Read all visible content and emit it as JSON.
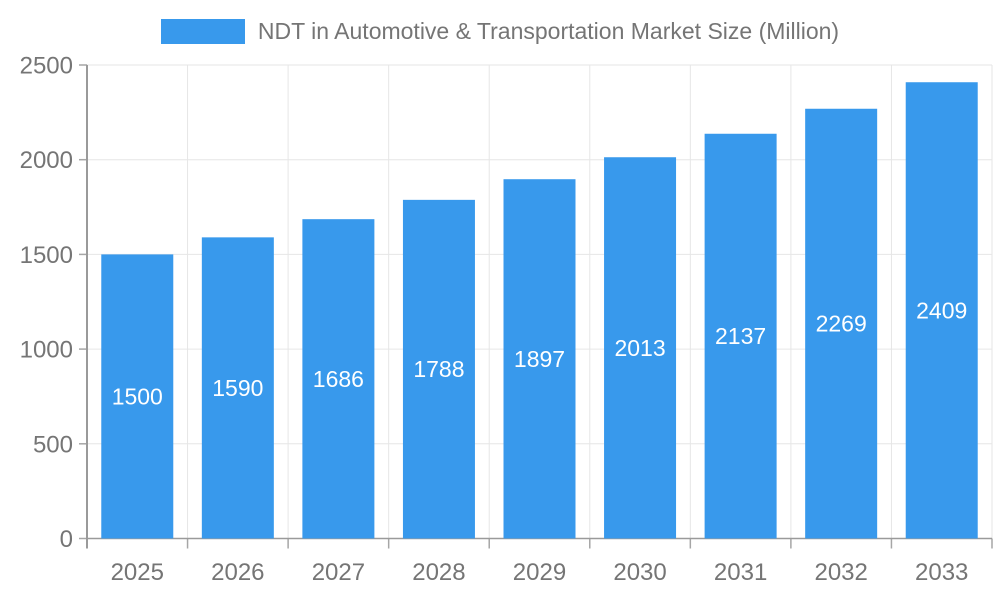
{
  "chart_data": {
    "type": "bar",
    "title": "NDT in Automotive & Transportation Market Size (Million)",
    "legend": {
      "label": "NDT in Automotive & Transportation Market Size (Million)",
      "position": "top"
    },
    "categories": [
      "2025",
      "2026",
      "2027",
      "2028",
      "2029",
      "2030",
      "2031",
      "2032",
      "2033"
    ],
    "values": [
      1500,
      1590,
      1686,
      1788,
      1897,
      2013,
      2137,
      2269,
      2409
    ],
    "xlabel": "",
    "ylabel": "",
    "ylim": [
      0,
      2500
    ],
    "yticks": [
      0,
      500,
      1000,
      1500,
      2000,
      2500
    ],
    "grid": true,
    "value_labels_inside_bars": true,
    "colors": {
      "bar": "#3899ec",
      "value_label": "#ffffff",
      "tick_label": "#757575",
      "grid_line": "#e6e6e6",
      "axis_line": "#9a9a9a",
      "tick_mark": "#a6a6a6"
    }
  }
}
